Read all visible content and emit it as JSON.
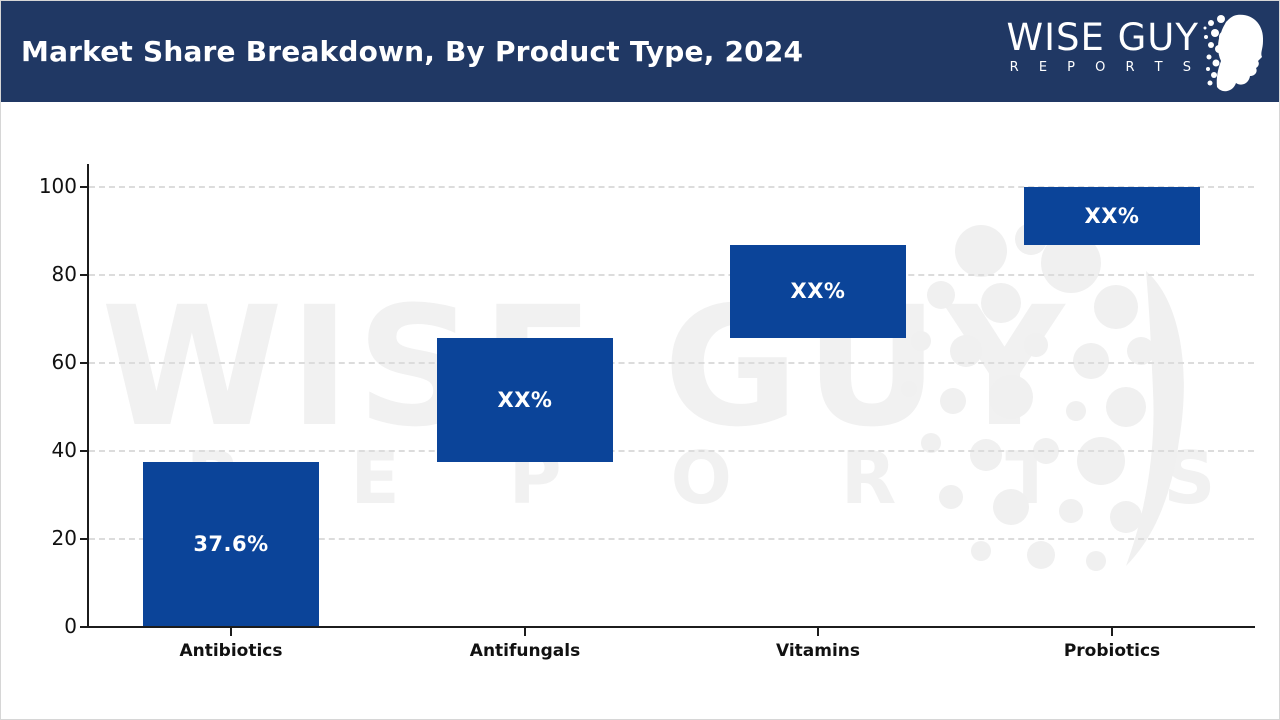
{
  "header": {
    "title": "Market Share Breakdown, By Product Type, 2024",
    "bg_color": "#203864",
    "logo": {
      "line1": "WISE GUY",
      "line2": "R E P O R T S"
    }
  },
  "watermark": {
    "line1": "WISE GUY",
    "line2": "R E P O R T S"
  },
  "chart_data": {
    "type": "bar",
    "subtype": "waterfall",
    "title": "Market Share Breakdown, By Product Type, 2024",
    "categories": [
      "Antibiotics",
      "Antifungals",
      "Vitamins",
      "Probiotics"
    ],
    "segments": [
      {
        "category": "Antibiotics",
        "start": 0,
        "end": 37.6,
        "label": "37.6%"
      },
      {
        "category": "Antifungals",
        "start": 37.6,
        "end": 65.7,
        "label": "XX%"
      },
      {
        "category": "Vitamins",
        "start": 65.7,
        "end": 86.8,
        "label": "XX%"
      },
      {
        "category": "Probiotics",
        "start": 86.8,
        "end": 100,
        "label": "XX%"
      }
    ],
    "xlabel": "",
    "ylabel": "",
    "ylim": [
      0,
      100
    ],
    "yticks": [
      0,
      20,
      40,
      60,
      80,
      100
    ],
    "grid": "horizontal-dashed",
    "legend": null,
    "bar_color": "#0b4499",
    "bar_label_color": "#ffffff",
    "axis_color": "#1c1c1c",
    "gridline_color": "#dcdcdc"
  }
}
